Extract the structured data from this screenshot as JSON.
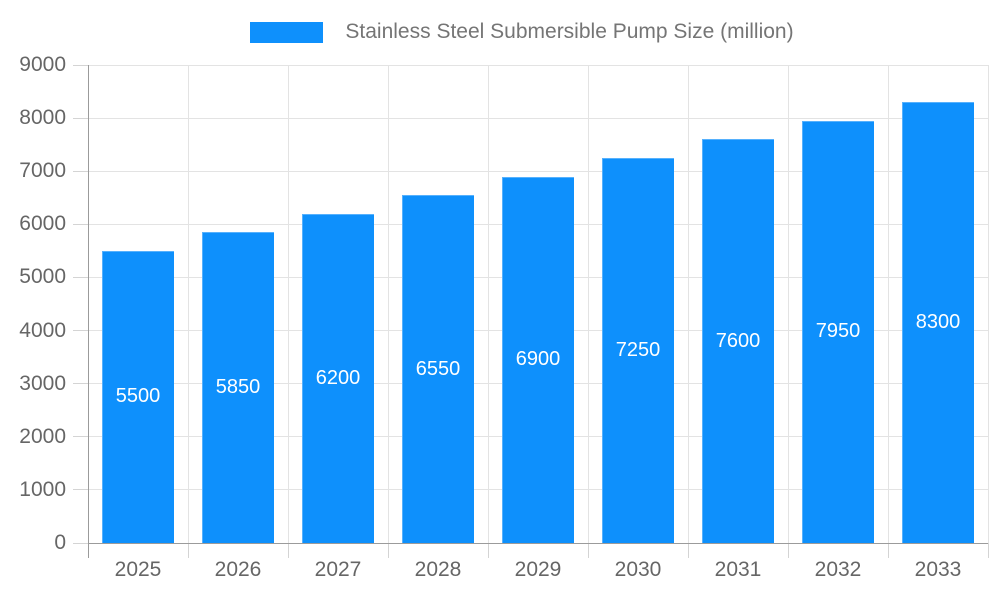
{
  "legend": {
    "label": "Stainless Steel Submersible Pump Size (million)"
  },
  "colors": {
    "bar": "#0e90fc",
    "bar_edge": "rgba(255,255,255,0.3)",
    "grid": "#e3e3e3",
    "tick": "#d4d4d4",
    "axis": "#9b9b9b",
    "axis_text": "#666666",
    "legend_text": "#757575",
    "value_text": "#ffffff",
    "background": "#ffffff"
  },
  "chart_data": {
    "type": "bar",
    "title": "Stainless Steel Submersible Pump Size (million)",
    "categories": [
      "2025",
      "2026",
      "2027",
      "2028",
      "2029",
      "2030",
      "2031",
      "2032",
      "2033"
    ],
    "series": [
      {
        "name": "Stainless Steel Submersible Pump Size (million)",
        "values": [
          5500,
          5850,
          6200,
          6550,
          6900,
          7250,
          7600,
          7950,
          8300
        ]
      }
    ],
    "xlabel": "",
    "ylabel": "",
    "ylim": [
      0,
      9000
    ],
    "ytick_step": 1000,
    "ytick_labels": [
      "0",
      "1000",
      "2000",
      "3000",
      "4000",
      "5000",
      "6000",
      "7000",
      "8000",
      "9000"
    ],
    "grid": true,
    "legend_position": "top-center",
    "value_label_position": "inside-center"
  }
}
